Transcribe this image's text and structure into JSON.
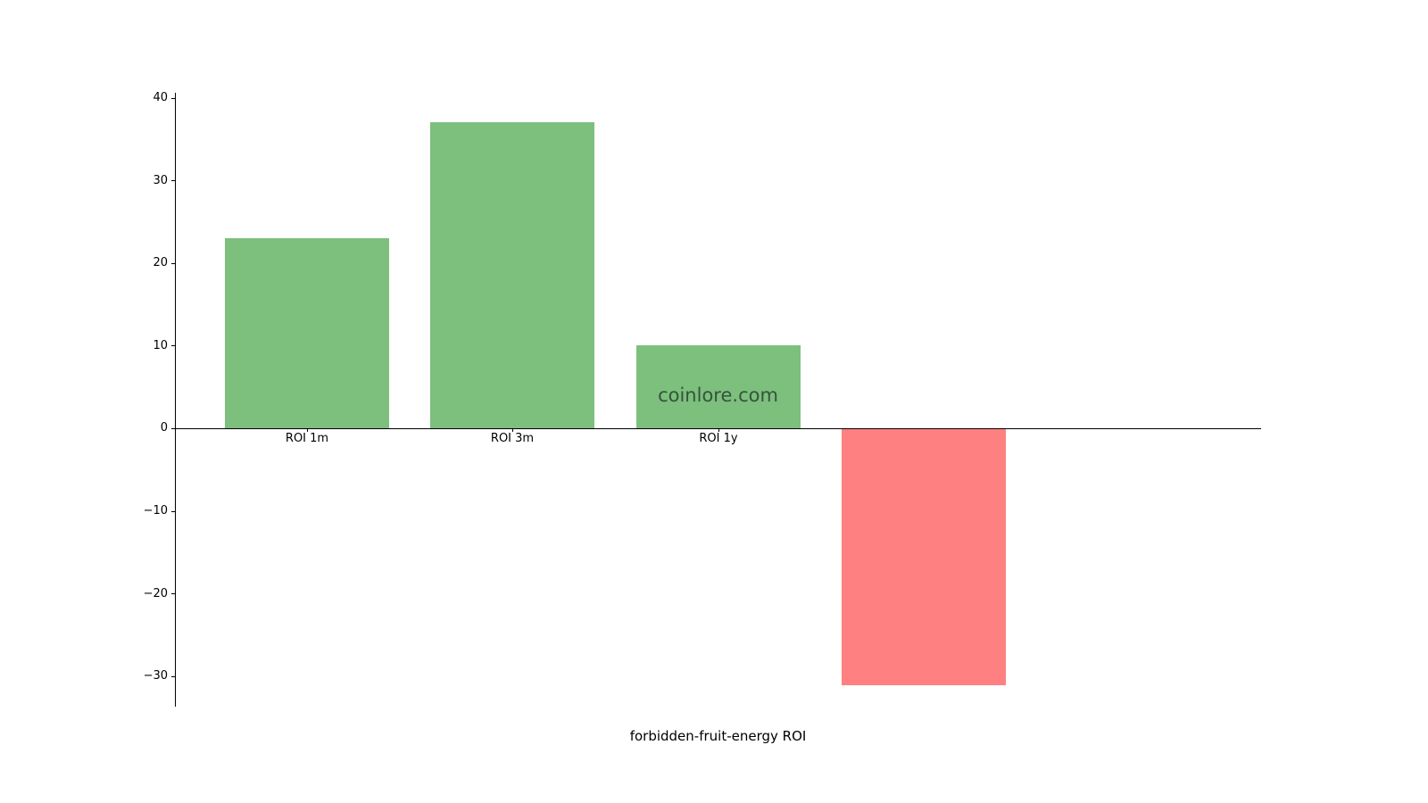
{
  "page": {
    "background_color": "#ffffff"
  },
  "watermark": {
    "text": "coinlore.com",
    "color_hint": "dark desaturated green over green bar"
  },
  "chart_data": {
    "type": "bar",
    "title": "forbidden-fruit-energy ROI",
    "categories": [
      "ROI 1m",
      "ROI 3m",
      "ROI 1y",
      ""
    ],
    "values": [
      23,
      37,
      10,
      -31
    ],
    "bar_colors": [
      "#7dbf7d",
      "#7dbf7d",
      "#7dbf7d",
      "#ff8080"
    ],
    "positive_color": "#7dbf7d",
    "negative_color": "#ff8080",
    "xlabel": "",
    "ylabel": "",
    "y_ticks": [
      40,
      30,
      20,
      10,
      0,
      -10,
      -20,
      -30
    ],
    "ylim": [
      -33.7,
      40.6
    ],
    "xlim_slots": [
      -0.64,
      4.64
    ],
    "grid": false,
    "legend": null,
    "axis_color": "#000000",
    "annotations": [
      "coinlore.com"
    ]
  }
}
